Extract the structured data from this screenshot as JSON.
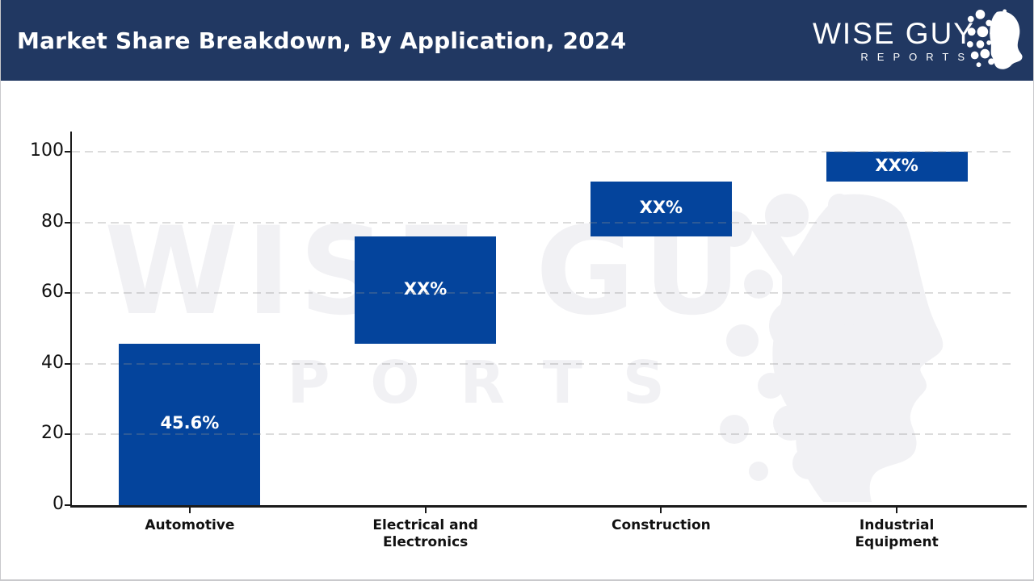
{
  "header": {
    "title": "Market Share Breakdown, By Application, 2024",
    "logo": {
      "wordmark": "WISE GUY",
      "subtext": "REPORTS"
    }
  },
  "watermark": {
    "wordmark": "WISE GUY",
    "subtext": "REPORTS"
  },
  "colors": {
    "header_bg": "#213862",
    "title_text": "#ffffff",
    "bar": "#04449c",
    "bar_label_text": "#ffffff",
    "axis": "#1a1a1a",
    "tick_label": "#111111",
    "gridline": "rgba(140,140,140,0.30)",
    "watermark": "#f1f1f4",
    "frame_border": "#c9c9cc"
  },
  "chart_data": {
    "type": "bar",
    "subtype": "waterfall",
    "title": "Market Share Breakdown, By Application, 2024",
    "xlabel": "",
    "ylabel": "",
    "ylim": [
      0,
      100
    ],
    "yticks": [
      0,
      20,
      40,
      60,
      80,
      100
    ],
    "grid": "horizontal dashed",
    "legend": "none",
    "categories": [
      {
        "label": "Automotive",
        "lines": [
          "Automotive"
        ]
      },
      {
        "label": "Electrical and Electronics",
        "lines": [
          "Electrical and",
          "Electronics"
        ]
      },
      {
        "label": "Construction",
        "lines": [
          "Construction"
        ]
      },
      {
        "label": "Industrial Equipment",
        "lines": [
          "Industrial",
          "Equipment"
        ]
      }
    ],
    "segments": [
      {
        "category": "Automotive",
        "start": 0,
        "end": 45.6,
        "value_label": "45.6%"
      },
      {
        "category": "Electrical and Electronics",
        "start": 45.6,
        "end": 76,
        "value_label": "XX%"
      },
      {
        "category": "Construction",
        "start": 76,
        "end": 91.5,
        "value_label": "XX%"
      },
      {
        "category": "Industrial Equipment",
        "start": 91.5,
        "end": 100,
        "value_label": "XX%"
      }
    ]
  }
}
